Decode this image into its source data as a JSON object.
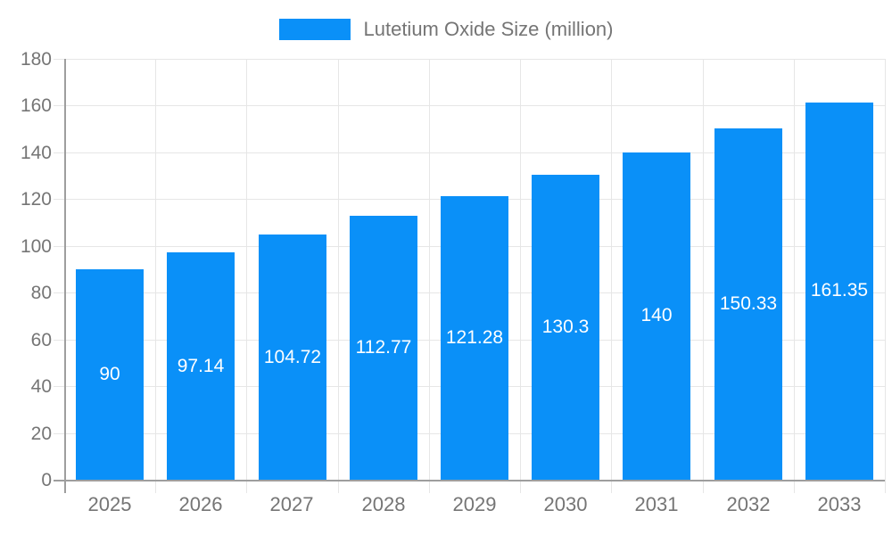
{
  "legend": {
    "label": "Lutetium Oxide Size (million)"
  },
  "colors": {
    "bar": "#0a90f8",
    "axis": "#9e9e9e",
    "grid": "#e6e6e6",
    "tick_label": "#757575",
    "value_label": "#ffffff",
    "background": "#ffffff"
  },
  "chart_data": {
    "type": "bar",
    "title": "Lutetium Oxide Size (million)",
    "categories": [
      "2025",
      "2026",
      "2027",
      "2028",
      "2029",
      "2030",
      "2031",
      "2032",
      "2033"
    ],
    "values": [
      90,
      97.14,
      104.72,
      112.77,
      121.28,
      130.3,
      140,
      150.33,
      161.35
    ],
    "value_labels": [
      "90",
      "97.14",
      "104.72",
      "112.77",
      "121.28",
      "130.3",
      "140",
      "150.33",
      "161.35"
    ],
    "xlabel": "",
    "ylabel": "",
    "ylim": [
      0,
      180
    ],
    "ytick_step": 20,
    "ytick_labels": [
      "0",
      "20",
      "40",
      "60",
      "80",
      "100",
      "120",
      "140",
      "160",
      "180"
    ],
    "grid": true,
    "legend_position": "top",
    "series": [
      {
        "name": "Lutetium Oxide Size (million)",
        "values": [
          90,
          97.14,
          104.72,
          112.77,
          121.28,
          130.3,
          140,
          150.33,
          161.35
        ]
      }
    ]
  }
}
